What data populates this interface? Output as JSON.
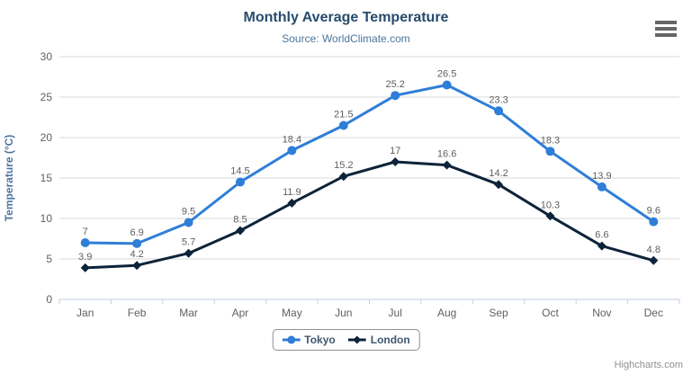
{
  "header": {
    "context_menu_icon": "hamburger-menu"
  },
  "credit": {
    "text": "Highcharts.com"
  },
  "chart_data": {
    "type": "line",
    "title": "Monthly Average Temperature",
    "subtitle": "Source: WorldClimate.com",
    "categories": [
      "Jan",
      "Feb",
      "Mar",
      "Apr",
      "May",
      "Jun",
      "Jul",
      "Aug",
      "Sep",
      "Oct",
      "Nov",
      "Dec"
    ],
    "series": [
      {
        "name": "Tokyo",
        "color": "#2f7ed8",
        "marker": "circle",
        "values": [
          7,
          6.9,
          9.5,
          14.5,
          18.4,
          21.5,
          25.2,
          26.5,
          23.3,
          18.3,
          13.9,
          9.6
        ]
      },
      {
        "name": "London",
        "color": "#0d233a",
        "marker": "diamond",
        "values": [
          3.9,
          4.2,
          5.7,
          8.5,
          11.9,
          15.2,
          17,
          16.6,
          14.2,
          10.3,
          6.6,
          4.8
        ]
      }
    ],
    "xlabel": "",
    "ylabel": "Temperature (°C)",
    "ylim": [
      0,
      30
    ],
    "ytick_interval": 5,
    "grid": true,
    "legend_position": "bottom",
    "data_labels": true
  },
  "theme": {
    "title_color": "#274b6d",
    "subtitle_color": "#4d759e",
    "axis_label_color": "#606060",
    "axis_title_color": "#4d759e",
    "data_label_color": "#606060",
    "grid_color": "#d8d8d8",
    "axis_line_color": "#c0d0e0",
    "legend_text_color": "#3e576f",
    "legend_border_color": "#909090",
    "credit_color": "#909090",
    "menu_icon_color": "#666666",
    "background": "#ffffff"
  }
}
